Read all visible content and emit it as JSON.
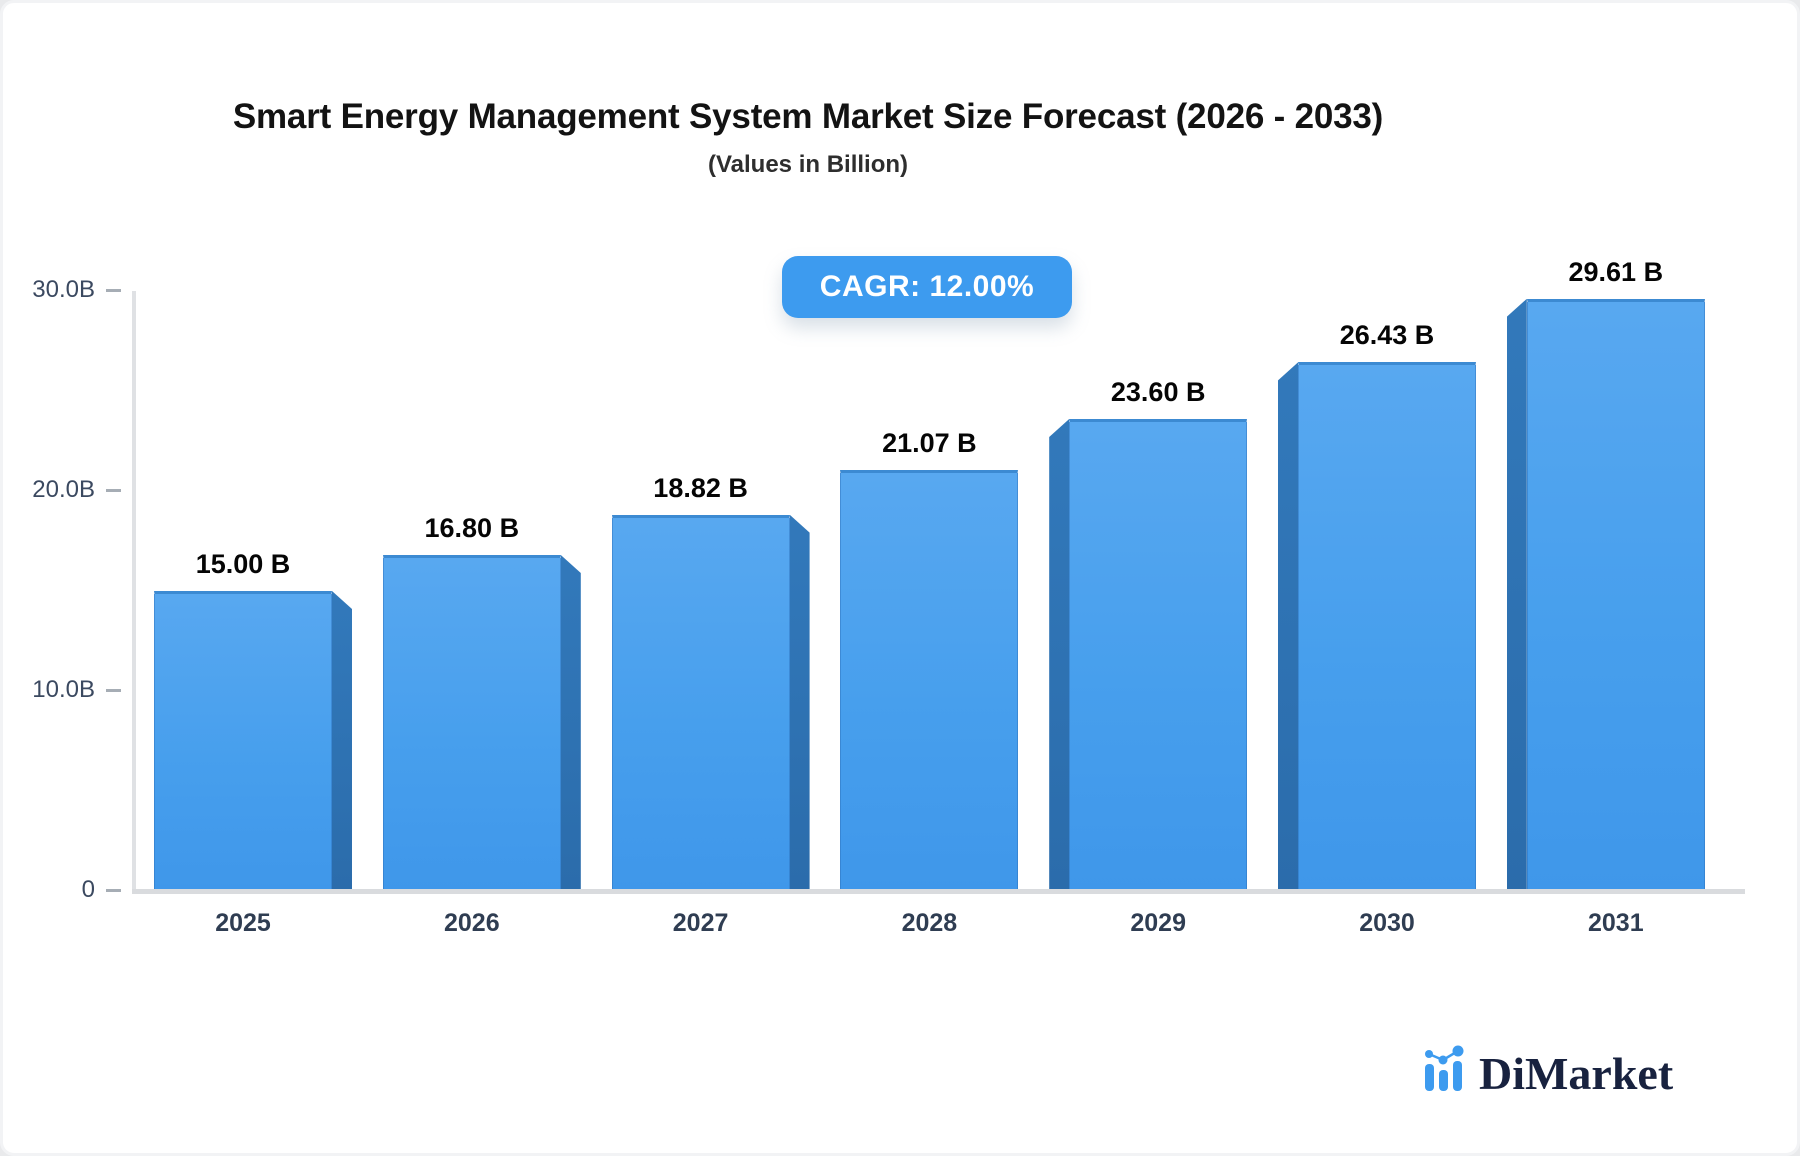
{
  "title": "Smart Energy Management System Market Size Forecast (2026 - 2033)",
  "subtitle": "(Values in Billion)",
  "badge": {
    "label": "CAGR: 12.00%"
  },
  "brand": {
    "name": "DiMarket",
    "icon": "bar-chart-logo-icon"
  },
  "colors": {
    "bar_fill": "#479fed",
    "bar_side_face": "#2e73b4",
    "badge_bg": "#3d9bef",
    "axis_gray": "#d9dbde",
    "label_dark": "#2f3d52",
    "brand_navy": "#18223f"
  },
  "chart_data": {
    "type": "bar",
    "categories": [
      "2025",
      "2026",
      "2027",
      "2028",
      "2029",
      "2030",
      "2031"
    ],
    "values": [
      15.0,
      16.8,
      18.82,
      21.07,
      23.6,
      26.43,
      29.61
    ],
    "value_labels": [
      "15.00 B",
      "16.80 B",
      "18.82 B",
      "21.07 B",
      "23.60 B",
      "26.43 B",
      "29.61 B"
    ],
    "title": "Smart Energy Management System Market Size Forecast (2026 - 2033)",
    "subtitle": "(Values in Billion)",
    "xlabel": "",
    "ylabel": "",
    "ylim": [
      0,
      30
    ],
    "grid": false,
    "legend": false,
    "yticks": [
      {
        "label": "30.0B",
        "value": 30
      },
      {
        "label": "20.0B",
        "value": 20
      },
      {
        "label": "10.0B",
        "value": 10
      },
      {
        "label": "0",
        "value": 0
      }
    ],
    "style": "3d-perspective-bars, side faces angled toward center, flat middle bar"
  }
}
